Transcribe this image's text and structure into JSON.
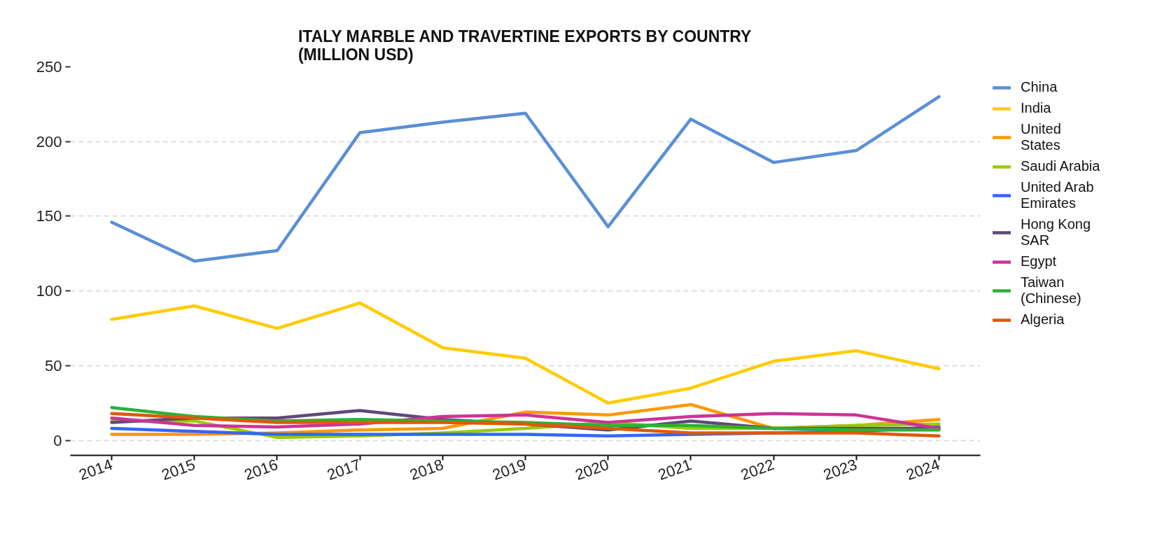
{
  "chart_data": {
    "type": "line",
    "title": "ITALY MARBLE AND TRAVERTINE EXPORTS BY COUNTRY\n(MILLION USD)",
    "x": [
      2014,
      2015,
      2016,
      2017,
      2018,
      2019,
      2020,
      2021,
      2022,
      2023,
      2024
    ],
    "xlim": [
      2013.5,
      2024.5
    ],
    "xticks": [
      2014,
      2015,
      2016,
      2017,
      2018,
      2019,
      2020,
      2021,
      2022,
      2023,
      2024
    ],
    "ylim": [
      -10,
      250
    ],
    "yticks": [
      0,
      50,
      100,
      150,
      200,
      250
    ],
    "grid": "y",
    "legend": "top right",
    "series": [
      {
        "name": "China",
        "color": "#5a8fd6",
        "values": [
          146,
          120,
          127,
          206,
          213,
          219,
          143,
          215,
          186,
          194,
          230
        ]
      },
      {
        "name": "India",
        "color": "#ffcc00",
        "values": [
          81,
          90,
          75,
          92,
          62,
          55,
          25,
          35,
          53,
          60,
          48
        ]
      },
      {
        "name": "United States",
        "color": "#ff9900",
        "values": [
          4,
          4,
          5,
          7,
          8,
          19,
          17,
          24,
          8,
          10,
          14
        ]
      },
      {
        "name": "Saudi Arabia",
        "color": "#99cc00",
        "values": [
          13,
          13,
          2,
          3,
          5,
          8,
          12,
          8,
          8,
          10,
          11
        ]
      },
      {
        "name": "United Arab Emirates",
        "color": "#3366ff",
        "values": [
          8,
          6,
          4,
          4,
          4,
          4,
          3,
          4,
          5,
          6,
          9
        ]
      },
      {
        "name": "Hong Kong SAR",
        "color": "#5f497a",
        "values": [
          12,
          15,
          15,
          20,
          14,
          11,
          7,
          13,
          8,
          8,
          8
        ]
      },
      {
        "name": "Egypt",
        "color": "#cc3399",
        "values": [
          15,
          10,
          9,
          11,
          16,
          17,
          12,
          16,
          18,
          17,
          8
        ]
      },
      {
        "name": "Taiwan (Chinese)",
        "color": "#2eb135",
        "values": [
          22,
          16,
          13,
          14,
          13,
          12,
          10,
          10,
          8,
          7,
          7
        ]
      },
      {
        "name": "Algeria",
        "color": "#e0580b",
        "values": [
          18,
          15,
          12,
          12,
          12,
          11,
          8,
          5,
          5,
          5,
          3
        ]
      }
    ]
  }
}
